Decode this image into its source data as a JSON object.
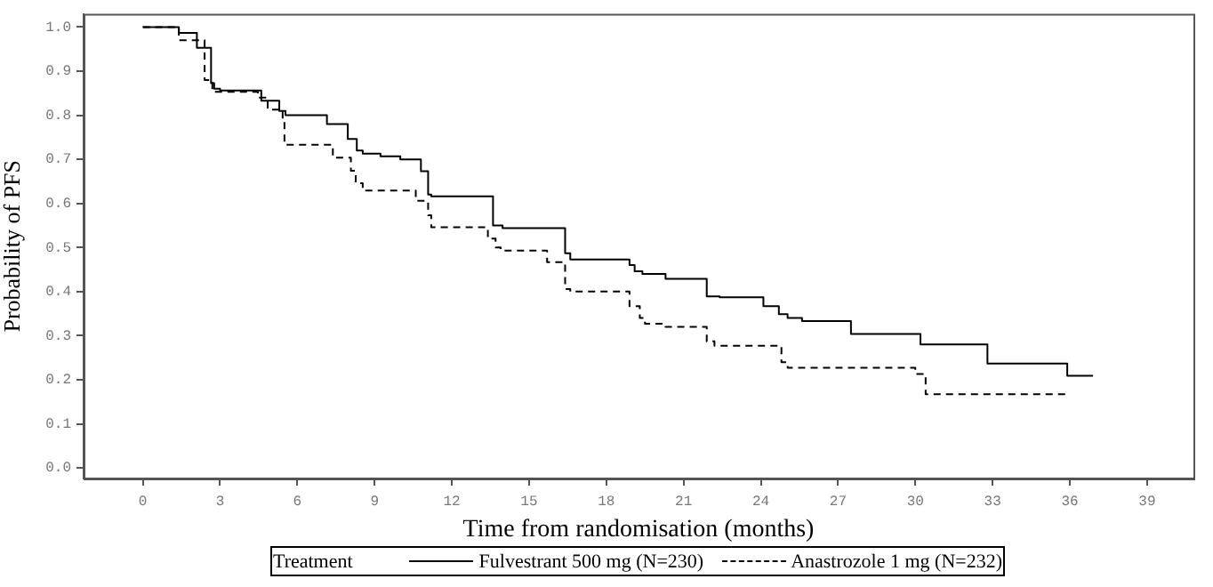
{
  "chart_data": {
    "type": "step",
    "xlabel": "Time from randomisation (months)",
    "ylabel": "Probability of PFS",
    "legend_title": "Treatment",
    "legend": "bottom",
    "grid": false,
    "marker": "none",
    "xlim": [
      -2.3,
      40.8
    ],
    "xticks": [
      0,
      3,
      6,
      9,
      12,
      15,
      18,
      21,
      24,
      27,
      30,
      33,
      36,
      39
    ],
    "ylim": [
      -0.024,
      1.03
    ],
    "yticks": [
      {
        "value": 0,
        "label": "0.0"
      },
      {
        "value": 0.1,
        "label": "0.1"
      },
      {
        "value": 0.2,
        "label": "0.2"
      },
      {
        "value": 0.3,
        "label": "0.3"
      },
      {
        "value": 0.4,
        "label": "0.4"
      },
      {
        "value": 0.5,
        "label": "0.5"
      },
      {
        "value": 0.6,
        "label": "0.6"
      },
      {
        "value": 0.7,
        "label": "0.7"
      },
      {
        "value": 0.8,
        "label": "0.8"
      },
      {
        "value": 0.9,
        "label": "0.9"
      },
      {
        "value": 1,
        "label": "1.0"
      }
    ],
    "series": [
      {
        "name": "Fulvestrant 500 mg (N=230)",
        "color": "#000000",
        "line_style": "solid",
        "x": [
          0,
          1.4,
          2.1,
          2.65,
          2.77,
          3.0,
          4.6,
          5.3,
          5.54,
          7.15,
          7.96,
          8.31,
          8.54,
          9.23,
          10.0,
          10.8,
          11.08,
          11.2,
          13.6,
          13.97,
          16.4,
          16.6,
          18.9,
          19.1,
          19.4,
          20.3,
          21.9,
          22.4,
          24.1,
          24.7,
          25.04,
          25.6,
          26.3,
          27.5,
          27.7,
          30.2,
          30.5,
          32.8,
          33.0,
          35.9,
          36.0,
          36.9
        ],
        "values": [
          1.0,
          1.0,
          0.987,
          0.953,
          0.873,
          0.86,
          0.856,
          0.833,
          0.81,
          0.8,
          0.78,
          0.746,
          0.72,
          0.713,
          0.707,
          0.7,
          0.673,
          0.62,
          0.616,
          0.55,
          0.544,
          0.487,
          0.473,
          0.46,
          0.446,
          0.44,
          0.429,
          0.389,
          0.387,
          0.367,
          0.349,
          0.34,
          0.333,
          0.333,
          0.304,
          0.304,
          0.28,
          0.28,
          0.237,
          0.237,
          0.209,
          0.209
        ]
      },
      {
        "name": "Anastrozole 1 mg (N=232)",
        "color": "#000000",
        "line_style": "dashed",
        "x": [
          0,
          1.4,
          2.4,
          2.7,
          2.9,
          4.47,
          4.85,
          5.43,
          5.5,
          5.54,
          7.38,
          8.08,
          8.27,
          8.54,
          10.6,
          11.08,
          11.2,
          13.4,
          13.7,
          13.9,
          15.7,
          16.4,
          16.6,
          18.9,
          19.3,
          19.5,
          20.3,
          21.9,
          22.2,
          24.8,
          25.04,
          30.0,
          30.4,
          30.6,
          36.0
        ],
        "values": [
          1.0,
          1.0,
          0.97,
          0.88,
          0.853,
          0.853,
          0.84,
          0.813,
          0.787,
          0.737,
          0.733,
          0.704,
          0.674,
          0.646,
          0.629,
          0.606,
          0.573,
          0.546,
          0.52,
          0.5,
          0.493,
          0.467,
          0.406,
          0.4,
          0.367,
          0.34,
          0.327,
          0.32,
          0.287,
          0.277,
          0.24,
          0.227,
          0.213,
          0.167,
          0.167
        ]
      }
    ]
  }
}
